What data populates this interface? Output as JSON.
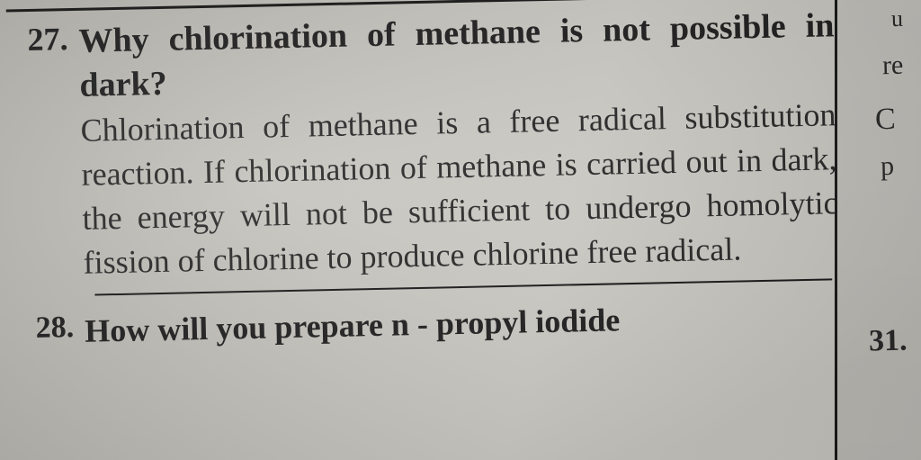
{
  "page": {
    "colors": {
      "paper_bg_left": "#b8b6b0",
      "paper_bg_right": "#c8c6c0",
      "ink": "#222222",
      "rule": "#1a1a1a"
    },
    "question27": {
      "number": "27.",
      "title": "Why chlorination of methane is not possible in dark?",
      "answer": "Chlorination of methane is a free radical substitution reaction. If chlorination of methane is carried out in dark, the energy will not be sufficient to undergo homolytic fission of chlorine to produce chlorine free radical."
    },
    "question28": {
      "number": "28.",
      "title": "How will you prepare n - propyl iodide"
    },
    "right_margin": {
      "fragments": [
        "u",
        "re",
        "C",
        "p"
      ],
      "next_number": "31."
    }
  }
}
